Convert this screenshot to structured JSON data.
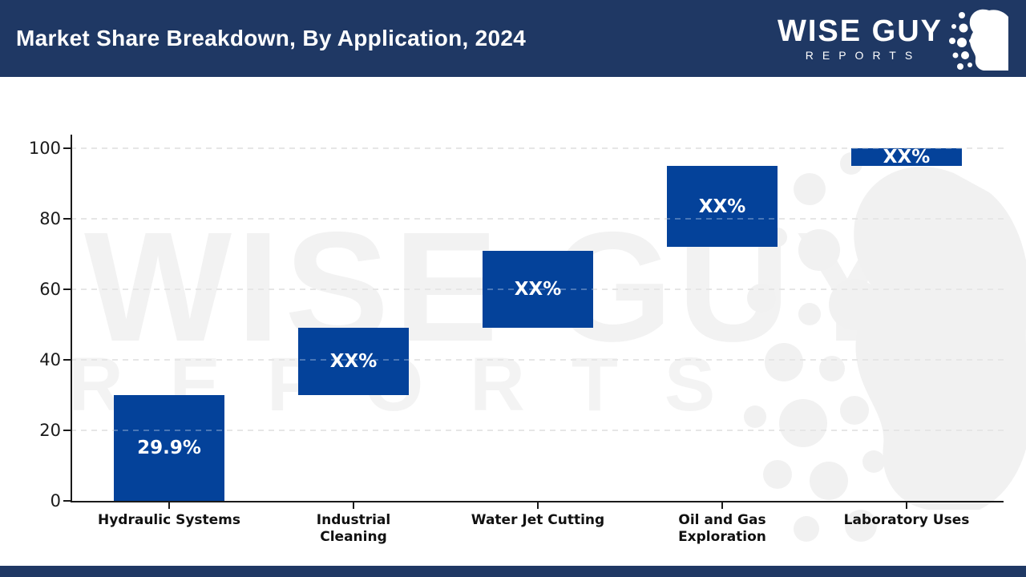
{
  "header": {
    "title": "Market Share Breakdown, By Application, 2024",
    "logo": {
      "line1": "WISE GUY",
      "line2": "REPORTS"
    }
  },
  "watermark": {
    "line1": "WISE GUY",
    "line2": "REPORTS"
  },
  "colors": {
    "header_bg": "#1f3864",
    "footer_bg": "#1f3864",
    "bar": "#04429a",
    "bar_label": "#ffffff",
    "axis": "#1a1a1a",
    "gridline": "#dcdcdc",
    "watermark": "#f2f2f2"
  },
  "chart_data": {
    "type": "bar",
    "subtype": "waterfall",
    "title": "Market Share Breakdown, By Application, 2024",
    "categories": [
      "Hydraulic Systems",
      "Industrial\nCleaning",
      "Water Jet Cutting",
      "Oil and Gas\nExploration",
      "Laboratory Uses"
    ],
    "segments": [
      {
        "category": "Hydraulic Systems",
        "start": 0,
        "end": 29.9,
        "value_label": "29.9%"
      },
      {
        "category": "Industrial Cleaning",
        "start": 29.9,
        "end": 49,
        "value_label": "XX%"
      },
      {
        "category": "Water Jet Cutting",
        "start": 49,
        "end": 71,
        "value_label": "XX%"
      },
      {
        "category": "Oil and Gas Exploration",
        "start": 72,
        "end": 95,
        "value_label": "XX%"
      },
      {
        "category": "Laboratory Uses",
        "start": 95,
        "end": 100,
        "value_label": "XX%"
      }
    ],
    "y_ticks": [
      0,
      20,
      40,
      60,
      80,
      100
    ],
    "ylim": [
      0,
      105
    ],
    "xlabel": "",
    "ylabel": "",
    "grid": "horizontal-dashed",
    "legend": "none"
  }
}
